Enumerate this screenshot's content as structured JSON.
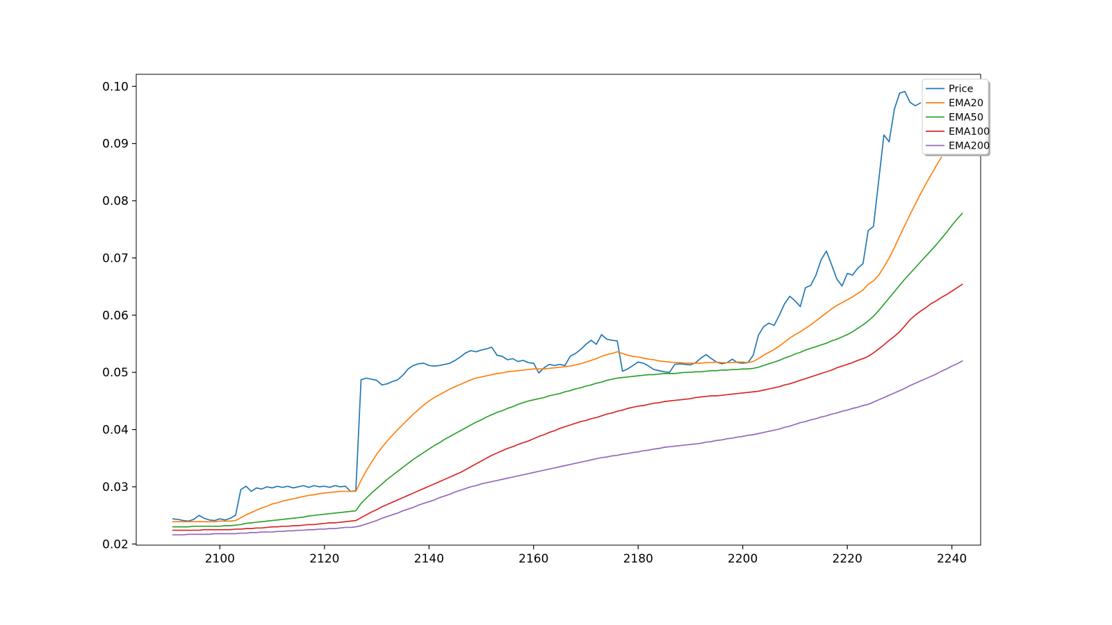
{
  "figure": {
    "background": "#ffffff",
    "plot_border_color": "#000000"
  },
  "legend": {
    "position": "upper-right",
    "face_color": "#ffffff",
    "edge_color": "#cccccc",
    "shadow_color": "#b0b0b0",
    "entries": [
      {
        "label": "Price",
        "color": "#1f77b4"
      },
      {
        "label": "EMA20",
        "color": "#ff7f0e"
      },
      {
        "label": "EMA50",
        "color": "#2ca02c"
      },
      {
        "label": "EMA100",
        "color": "#d62728"
      },
      {
        "label": "EMA200",
        "color": "#9467bd"
      }
    ]
  },
  "chart_data": {
    "type": "line",
    "title": "",
    "xlabel": "",
    "ylabel": "",
    "grid": false,
    "legend_position": "upper right",
    "xlim": [
      2084,
      2245.5
    ],
    "ylim": [
      0.0198,
      0.1021
    ],
    "x_ticks": [
      2100,
      2120,
      2140,
      2160,
      2180,
      2200,
      2220,
      2240
    ],
    "x_tick_labels": [
      "2100",
      "2120",
      "2140",
      "2160",
      "2180",
      "2200",
      "2220",
      "2240"
    ],
    "y_ticks": [
      0.02,
      0.03,
      0.04,
      0.05,
      0.06,
      0.07,
      0.08,
      0.09,
      0.1
    ],
    "y_tick_labels": [
      "0.02",
      "0.03",
      "0.04",
      "0.05",
      "0.06",
      "0.07",
      "0.08",
      "0.09",
      "0.10"
    ],
    "series": [
      {
        "name": "Price",
        "color": "#1f77b4",
        "x_start": 2091,
        "x_step": 1,
        "values": [
          0.0244,
          0.0243,
          0.0241,
          0.024,
          0.0243,
          0.025,
          0.0245,
          0.0242,
          0.0241,
          0.0244,
          0.0242,
          0.0245,
          0.025,
          0.0295,
          0.0301,
          0.0292,
          0.0298,
          0.0296,
          0.03,
          0.0298,
          0.0301,
          0.0299,
          0.0301,
          0.0298,
          0.03,
          0.0302,
          0.0299,
          0.0302,
          0.03,
          0.0301,
          0.0299,
          0.0302,
          0.03,
          0.0301,
          0.0292,
          0.0293,
          0.0487,
          0.049,
          0.0488,
          0.0486,
          0.0478,
          0.048,
          0.0484,
          0.0487,
          0.0495,
          0.0506,
          0.0512,
          0.0515,
          0.0516,
          0.0512,
          0.0511,
          0.0512,
          0.0514,
          0.0516,
          0.0521,
          0.0527,
          0.0534,
          0.0538,
          0.0536,
          0.0539,
          0.0541,
          0.0544,
          0.053,
          0.0528,
          0.0522,
          0.0524,
          0.0519,
          0.0521,
          0.0517,
          0.0516,
          0.0499,
          0.0508,
          0.0514,
          0.0512,
          0.0514,
          0.0512,
          0.0528,
          0.0533,
          0.054,
          0.0549,
          0.0556,
          0.0549,
          0.0566,
          0.0558,
          0.0556,
          0.0555,
          0.0502,
          0.0506,
          0.0512,
          0.0518,
          0.0516,
          0.0511,
          0.0505,
          0.0503,
          0.0501,
          0.05,
          0.0514,
          0.0515,
          0.0514,
          0.0513,
          0.0517,
          0.0525,
          0.0531,
          0.0524,
          0.0518,
          0.0515,
          0.0517,
          0.0523,
          0.0517,
          0.0516,
          0.0517,
          0.053,
          0.0565,
          0.058,
          0.0586,
          0.0582,
          0.06,
          0.062,
          0.0633,
          0.0625,
          0.0615,
          0.0648,
          0.0652,
          0.067,
          0.0697,
          0.0712,
          0.0688,
          0.0663,
          0.0651,
          0.0673,
          0.067,
          0.0682,
          0.069,
          0.0748,
          0.0755,
          0.0835,
          0.0915,
          0.0903,
          0.096,
          0.0988,
          0.0991,
          0.0972,
          0.0966,
          0.0971
        ]
      },
      {
        "name": "EMA20",
        "color": "#ff7f0e",
        "x_start": 2091,
        "x_step": 1,
        "values": [
          0.0239,
          0.0239,
          0.0239,
          0.0239,
          0.0239,
          0.0239,
          0.0239,
          0.0239,
          0.0239,
          0.024,
          0.024,
          0.024,
          0.0241,
          0.0246,
          0.0251,
          0.0255,
          0.0259,
          0.0263,
          0.0266,
          0.027,
          0.0272,
          0.0275,
          0.0277,
          0.0279,
          0.0281,
          0.0283,
          0.0285,
          0.0286,
          0.0288,
          0.0289,
          0.029,
          0.0291,
          0.0292,
          0.0292,
          0.0292,
          0.0292,
          0.0311,
          0.0328,
          0.0343,
          0.0357,
          0.0369,
          0.038,
          0.039,
          0.04,
          0.0409,
          0.0418,
          0.0427,
          0.0435,
          0.0443,
          0.045,
          0.0456,
          0.0461,
          0.0466,
          0.0471,
          0.0475,
          0.0479,
          0.0483,
          0.0487,
          0.049,
          0.0492,
          0.0494,
          0.0496,
          0.0498,
          0.0499,
          0.0501,
          0.0502,
          0.0503,
          0.0504,
          0.0505,
          0.0506,
          0.0506,
          0.0506,
          0.0507,
          0.0508,
          0.0509,
          0.051,
          0.0511,
          0.0513,
          0.0515,
          0.0518,
          0.0521,
          0.0524,
          0.0528,
          0.0531,
          0.0533,
          0.0536,
          0.0533,
          0.053,
          0.0528,
          0.0527,
          0.0525,
          0.0523,
          0.0522,
          0.052,
          0.0519,
          0.0518,
          0.0517,
          0.0517,
          0.0516,
          0.0516,
          0.0516,
          0.0516,
          0.0517,
          0.0517,
          0.0518,
          0.0517,
          0.0517,
          0.0517,
          0.0518,
          0.0518,
          0.0517,
          0.0519,
          0.0524,
          0.053,
          0.0535,
          0.054,
          0.0546,
          0.0553,
          0.056,
          0.0566,
          0.0571,
          0.0577,
          0.0583,
          0.059,
          0.0597,
          0.0604,
          0.0611,
          0.0617,
          0.0622,
          0.0627,
          0.0632,
          0.0638,
          0.0644,
          0.0654,
          0.066,
          0.067,
          0.0684,
          0.07,
          0.0718,
          0.0738,
          0.0757,
          0.0776,
          0.0794,
          0.0812,
          0.0829,
          0.0845,
          0.0861,
          0.0876
        ]
      },
      {
        "name": "EMA50",
        "color": "#2ca02c",
        "x_start": 2091,
        "x_step": 1,
        "values": [
          0.023,
          0.023,
          0.023,
          0.023,
          0.0231,
          0.0231,
          0.0231,
          0.0231,
          0.0231,
          0.0231,
          0.0232,
          0.0232,
          0.0233,
          0.0234,
          0.0236,
          0.0237,
          0.0238,
          0.0239,
          0.024,
          0.0241,
          0.0242,
          0.0243,
          0.0244,
          0.0245,
          0.0246,
          0.0247,
          0.0249,
          0.025,
          0.0251,
          0.0252,
          0.0253,
          0.0254,
          0.0255,
          0.0256,
          0.0257,
          0.0258,
          0.0271,
          0.028,
          0.0289,
          0.0297,
          0.0305,
          0.0313,
          0.032,
          0.0327,
          0.0334,
          0.0341,
          0.0348,
          0.0354,
          0.036,
          0.0366,
          0.0372,
          0.0377,
          0.0383,
          0.0388,
          0.0393,
          0.0398,
          0.0403,
          0.0408,
          0.0413,
          0.0417,
          0.0422,
          0.0426,
          0.043,
          0.0433,
          0.0437,
          0.044,
          0.0444,
          0.0447,
          0.045,
          0.0452,
          0.0454,
          0.0456,
          0.0459,
          0.0461,
          0.0463,
          0.0466,
          0.0468,
          0.0471,
          0.0473,
          0.0476,
          0.0478,
          0.0481,
          0.0483,
          0.0486,
          0.0488,
          0.049,
          0.0491,
          0.0492,
          0.0493,
          0.0494,
          0.0495,
          0.0496,
          0.0496,
          0.0497,
          0.0498,
          0.0498,
          0.0498,
          0.0499,
          0.05,
          0.05,
          0.0501,
          0.0501,
          0.0502,
          0.0503,
          0.0503,
          0.0504,
          0.0504,
          0.0505,
          0.0505,
          0.0506,
          0.0506,
          0.0507,
          0.0509,
          0.0512,
          0.0515,
          0.0518,
          0.0521,
          0.0525,
          0.0528,
          0.0532,
          0.0535,
          0.0539,
          0.0542,
          0.0545,
          0.0548,
          0.0551,
          0.0555,
          0.0558,
          0.0562,
          0.0566,
          0.0571,
          0.0577,
          0.0583,
          0.059,
          0.0598,
          0.0608,
          0.0619,
          0.063,
          0.0641,
          0.0652,
          0.0663,
          0.0673,
          0.0683,
          0.0693,
          0.0703,
          0.0713,
          0.0723,
          0.0734,
          0.0745,
          0.0757,
          0.0768,
          0.0778
        ]
      },
      {
        "name": "EMA100",
        "color": "#d62728",
        "x_start": 2091,
        "x_step": 1,
        "values": [
          0.0224,
          0.0224,
          0.0224,
          0.0224,
          0.0224,
          0.0224,
          0.0225,
          0.0225,
          0.0225,
          0.0225,
          0.0225,
          0.0225,
          0.0226,
          0.0226,
          0.0227,
          0.0227,
          0.0228,
          0.0228,
          0.0229,
          0.023,
          0.023,
          0.0231,
          0.0231,
          0.0232,
          0.0232,
          0.0233,
          0.0234,
          0.0234,
          0.0235,
          0.0236,
          0.0237,
          0.0237,
          0.0238,
          0.0239,
          0.024,
          0.0241,
          0.0246,
          0.0251,
          0.0256,
          0.026,
          0.0265,
          0.0269,
          0.0273,
          0.0277,
          0.0281,
          0.0285,
          0.0289,
          0.0293,
          0.0297,
          0.0301,
          0.0305,
          0.0309,
          0.0313,
          0.0317,
          0.0321,
          0.0325,
          0.033,
          0.0335,
          0.034,
          0.0345,
          0.035,
          0.0355,
          0.0359,
          0.0363,
          0.0367,
          0.037,
          0.0374,
          0.0377,
          0.038,
          0.0384,
          0.0388,
          0.0391,
          0.0395,
          0.0398,
          0.0402,
          0.0405,
          0.0408,
          0.0411,
          0.0414,
          0.0416,
          0.0419,
          0.0421,
          0.0424,
          0.0427,
          0.0429,
          0.0432,
          0.0434,
          0.0437,
          0.0439,
          0.0441,
          0.0442,
          0.0444,
          0.0446,
          0.0447,
          0.0449,
          0.045,
          0.0451,
          0.0452,
          0.0453,
          0.0454,
          0.0456,
          0.0457,
          0.0458,
          0.0459,
          0.0459,
          0.046,
          0.0461,
          0.0462,
          0.0463,
          0.0464,
          0.0465,
          0.0466,
          0.0467,
          0.0469,
          0.0471,
          0.0473,
          0.0475,
          0.0478,
          0.048,
          0.0483,
          0.0486,
          0.0489,
          0.0492,
          0.0495,
          0.0498,
          0.0501,
          0.0504,
          0.0508,
          0.0511,
          0.0514,
          0.0517,
          0.0521,
          0.0524,
          0.0528,
          0.0534,
          0.0541,
          0.0548,
          0.0556,
          0.0563,
          0.0571,
          0.0581,
          0.0592,
          0.06,
          0.0607,
          0.0613,
          0.062,
          0.0625,
          0.0631,
          0.0636,
          0.0642,
          0.0648,
          0.0654
        ]
      },
      {
        "name": "EMA200",
        "color": "#9467bd",
        "x_start": 2091,
        "x_step": 1,
        "values": [
          0.0216,
          0.0216,
          0.0216,
          0.0217,
          0.0217,
          0.0217,
          0.0217,
          0.0217,
          0.0218,
          0.0218,
          0.0218,
          0.0218,
          0.0218,
          0.0219,
          0.0219,
          0.022,
          0.022,
          0.0221,
          0.0221,
          0.0221,
          0.0222,
          0.0222,
          0.0223,
          0.0223,
          0.0224,
          0.0224,
          0.0225,
          0.0225,
          0.0226,
          0.0226,
          0.0227,
          0.0227,
          0.0228,
          0.0229,
          0.0229,
          0.023,
          0.0232,
          0.0235,
          0.0238,
          0.0241,
          0.0245,
          0.0248,
          0.0251,
          0.0254,
          0.0258,
          0.0261,
          0.0264,
          0.0268,
          0.0271,
          0.0274,
          0.0277,
          0.0281,
          0.0284,
          0.0287,
          0.0291,
          0.0294,
          0.0297,
          0.03,
          0.0302,
          0.0305,
          0.0307,
          0.0309,
          0.0311,
          0.0313,
          0.0315,
          0.0317,
          0.0319,
          0.0321,
          0.0323,
          0.0325,
          0.0327,
          0.0329,
          0.0331,
          0.0333,
          0.0335,
          0.0337,
          0.0339,
          0.0341,
          0.0343,
          0.0345,
          0.0347,
          0.0349,
          0.0351,
          0.0352,
          0.0354,
          0.0355,
          0.0357,
          0.0358,
          0.036,
          0.0361,
          0.0363,
          0.0364,
          0.0366,
          0.0367,
          0.0369,
          0.037,
          0.0371,
          0.0372,
          0.0373,
          0.0374,
          0.0375,
          0.0376,
          0.0378,
          0.0379,
          0.0381,
          0.0382,
          0.0384,
          0.0385,
          0.0387,
          0.0388,
          0.039,
          0.0391,
          0.0393,
          0.0395,
          0.0397,
          0.0399,
          0.0401,
          0.0404,
          0.0406,
          0.0409,
          0.0412,
          0.0414,
          0.0417,
          0.0419,
          0.0422,
          0.0424,
          0.0427,
          0.0429,
          0.0432,
          0.0434,
          0.0437,
          0.0439,
          0.0442,
          0.0444,
          0.0448,
          0.0452,
          0.0456,
          0.046,
          0.0464,
          0.0468,
          0.0472,
          0.0477,
          0.0481,
          0.0485,
          0.0489,
          0.0493,
          0.0497,
          0.0502,
          0.0506,
          0.0511,
          0.0515,
          0.052
        ]
      }
    ]
  }
}
